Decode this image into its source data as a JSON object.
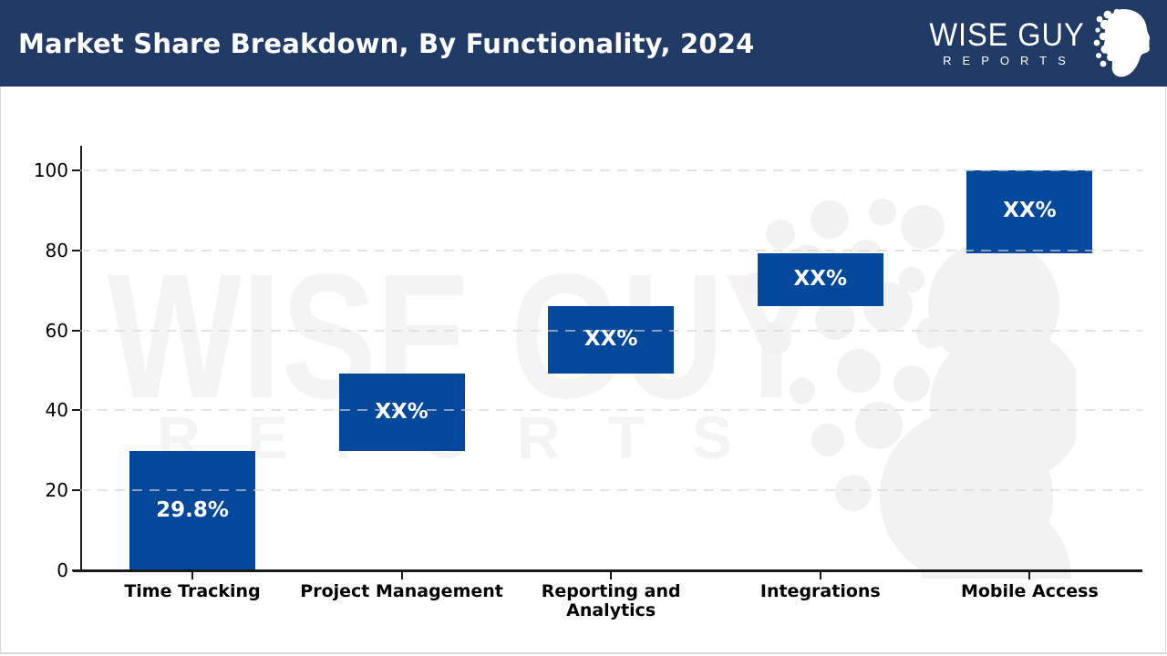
{
  "header": {
    "title": "Market Share Breakdown, By Functionality, 2024",
    "logo": {
      "line1": "WISE GUY",
      "line2": "REPORTS"
    }
  },
  "watermark": {
    "line1": "WISE GUY",
    "line2": "REPORTS"
  },
  "chart_data": {
    "type": "bar",
    "subtype": "waterfall",
    "title": "Market Share Breakdown, By Functionality, 2024",
    "categories": [
      "Time Tracking",
      "Project Management",
      "Reporting and\nAnalytics",
      "Integrations",
      "Mobile Access"
    ],
    "segments": [
      {
        "category": "Time Tracking",
        "start": 0,
        "end": 29.8,
        "label": "29.8%"
      },
      {
        "category": "Project Management",
        "start": 29.8,
        "end": 49.1,
        "label": "XX%"
      },
      {
        "category": "Reporting and Analytics",
        "start": 49.1,
        "end": 66.0,
        "label": "XX%"
      },
      {
        "category": "Integrations",
        "start": 66.0,
        "end": 79.3,
        "label": "XX%"
      },
      {
        "category": "Mobile Access",
        "start": 79.3,
        "end": 100.0,
        "label": "XX%"
      }
    ],
    "yticks": [
      "0",
      "20",
      "40",
      "60",
      "80",
      "100"
    ],
    "ylim": [
      0,
      106
    ],
    "xlabel": "",
    "ylabel": "",
    "grid": "dashed-horizontal",
    "legend": null,
    "bar_color": "#04489C",
    "header_color": "#213A66",
    "gridline_color": "#D5D5D5",
    "watermark_color": "#F4F4F4"
  }
}
